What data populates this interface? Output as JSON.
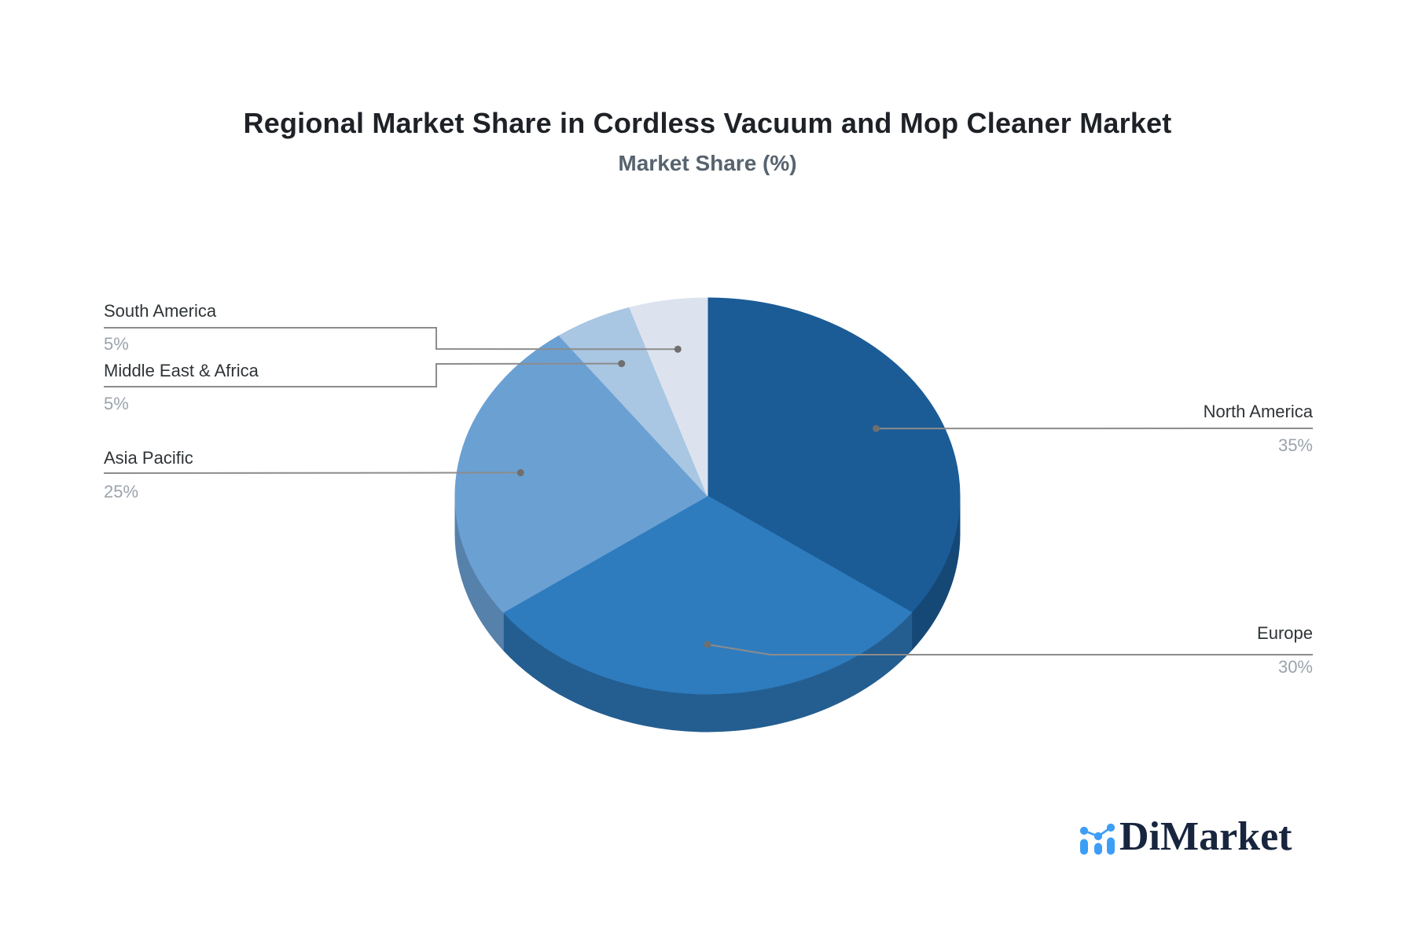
{
  "chart_data": {
    "type": "pie",
    "style": "3d",
    "title": "Regional Market Share in Cordless Vacuum and Mop Cleaner Market",
    "subtitle": "Market Share (%)",
    "unit": "percent",
    "start_angle": "12-oclock",
    "direction": "clockwise",
    "legend": "none",
    "slices": [
      {
        "label": "North America",
        "value": 35,
        "value_label": "35%",
        "color": "#1B5C97",
        "side_color": "#154875"
      },
      {
        "label": "Europe",
        "value": 30,
        "value_label": "30%",
        "color": "#2E7CBE",
        "side_color": "#245E90"
      },
      {
        "label": "Asia Pacific",
        "value": 25,
        "value_label": "25%",
        "color": "#6BA0D3",
        "side_color": "#5681AB"
      },
      {
        "label": "Middle East & Africa",
        "value": 5,
        "value_label": "5%",
        "color": "#A9C6E2",
        "side_color": "#84A2C1"
      },
      {
        "label": "South America",
        "value": 5,
        "value_label": "5%",
        "color": "#DCE3EF",
        "side_color": "#B3BFD1"
      }
    ],
    "label_name_color": "#2F3437",
    "label_value_color": "#9CA3AB",
    "leader_line_color": "#8C8C8C",
    "leader_dot_color": "#6F6F6F"
  },
  "branding": {
    "logo_text": "DiMarket",
    "logo_color": "#18253E",
    "icon": "bar-line-chart-icon",
    "icon_color": "#3D9EF7"
  }
}
